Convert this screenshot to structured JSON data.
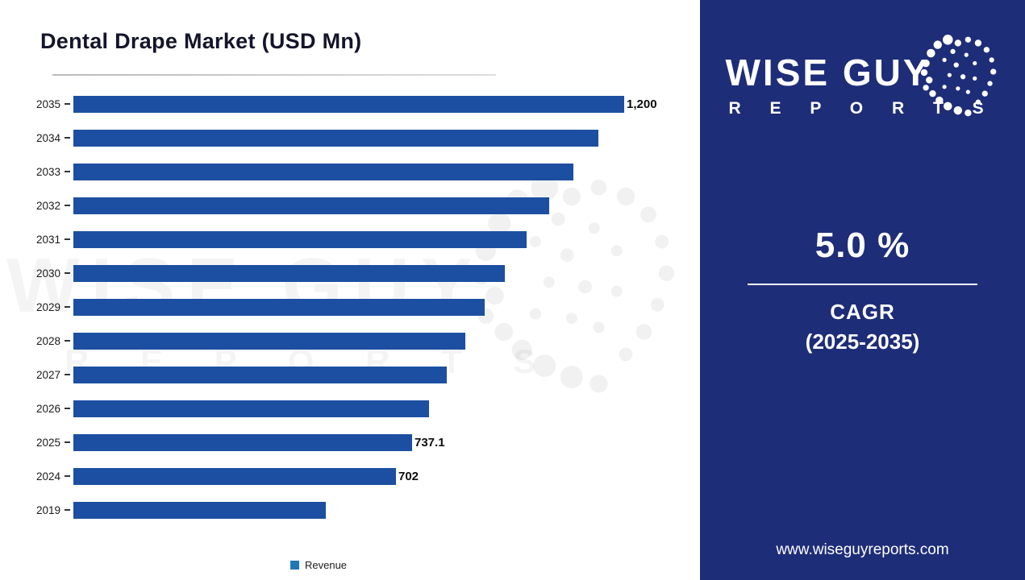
{
  "title": "Dental Drape Market (USD Mn)",
  "colors": {
    "bar": "#1c4fa1",
    "legend_swatch": "#1f77b4",
    "side_panel_background": "#1e2d78",
    "side_panel_text": "#ffffff"
  },
  "chart_data": {
    "type": "bar",
    "orientation": "horizontal",
    "title": "Dental Drape Market (USD Mn)",
    "xlabel": "",
    "ylabel": "",
    "xlim": [
      0,
      1260
    ],
    "legend": "Revenue",
    "legend_position": "bottom",
    "grid": false,
    "categories": [
      "2035",
      "2034",
      "2033",
      "2032",
      "2031",
      "2030",
      "2029",
      "2028",
      "2027",
      "2026",
      "2025",
      "2024",
      "2019"
    ],
    "values": [
      1200,
      1143.5,
      1089.1,
      1037.2,
      987.8,
      940.8,
      896.0,
      853.3,
      812.7,
      774.0,
      737.1,
      702,
      550
    ],
    "rows": [
      {
        "year": "2035",
        "value": 1200,
        "label": "1,200"
      },
      {
        "year": "2034",
        "value": 1143.5,
        "label": ""
      },
      {
        "year": "2033",
        "value": 1089.1,
        "label": ""
      },
      {
        "year": "2032",
        "value": 1037.2,
        "label": ""
      },
      {
        "year": "2031",
        "value": 987.8,
        "label": ""
      },
      {
        "year": "2030",
        "value": 940.8,
        "label": ""
      },
      {
        "year": "2029",
        "value": 896.0,
        "label": ""
      },
      {
        "year": "2028",
        "value": 853.3,
        "label": ""
      },
      {
        "year": "2027",
        "value": 812.7,
        "label": ""
      },
      {
        "year": "2026",
        "value": 774.0,
        "label": ""
      },
      {
        "year": "2025",
        "value": 737.1,
        "label": "737.1"
      },
      {
        "year": "2024",
        "value": 702,
        "label": "702"
      },
      {
        "year": "2019",
        "value": 550,
        "label": ""
      }
    ]
  },
  "legend": {
    "label": "Revenue"
  },
  "watermark": {
    "line1": "WISE GUY",
    "line2": "R E P O R T S"
  },
  "side_panel": {
    "logo_line1": "WISE GUY",
    "logo_line2": "R E P O R T S",
    "cagr_value": "5.0 %",
    "cagr_label1": "CAGR",
    "cagr_label2": "(2025-2035)",
    "website": "www.wiseguyreports.com"
  }
}
